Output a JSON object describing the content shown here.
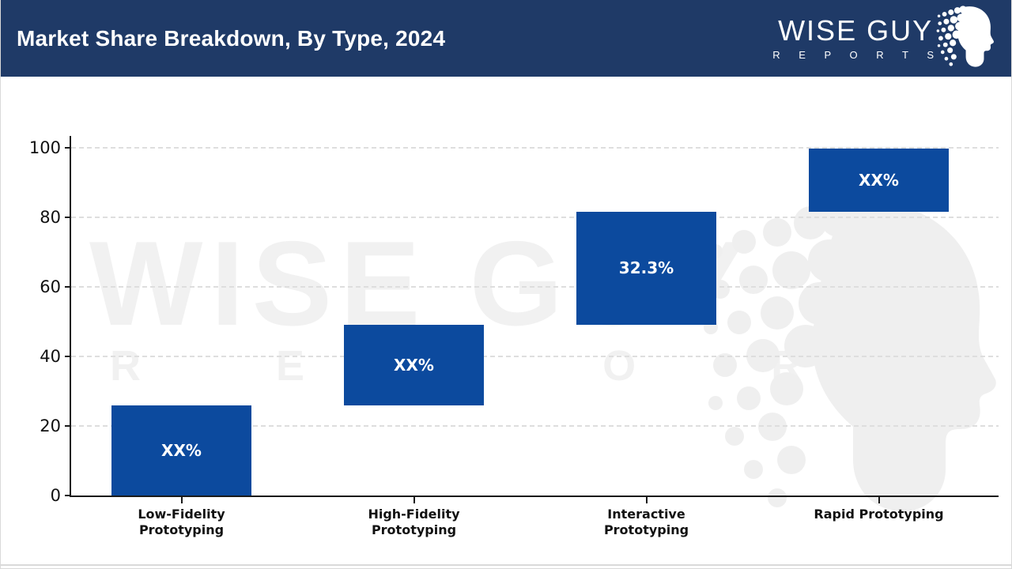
{
  "header": {
    "title": "Market Share Breakdown, By Type, 2024",
    "logo": {
      "line1": "WISE GUY",
      "line2": "R E P O R T S"
    }
  },
  "watermark": {
    "line1": "WISE GUY",
    "line2": "R E P O R T S"
  },
  "chart_data": {
    "type": "bar",
    "subtype": "floating-waterfall",
    "title": "Market Share Breakdown, By Type, 2024",
    "categories": [
      "Low-Fidelity Prototyping",
      "High-Fidelity Prototyping",
      "Interactive Prototyping",
      "Rapid Prototyping"
    ],
    "category_label_lines": [
      [
        "Low-Fidelity",
        "Prototyping"
      ],
      [
        "High-Fidelity",
        "Prototyping"
      ],
      [
        "Interactive",
        "Prototyping"
      ],
      [
        "Rapid Prototyping"
      ]
    ],
    "bars": [
      {
        "category": "Low-Fidelity Prototyping",
        "from": 0,
        "to": 25.8,
        "label": "XX%"
      },
      {
        "category": "High-Fidelity Prototyping",
        "from": 25.8,
        "to": 49.2,
        "label": "XX%"
      },
      {
        "category": "Interactive Prototyping",
        "from": 49.2,
        "to": 81.5,
        "label": "32.3%"
      },
      {
        "category": "Rapid Prototyping",
        "from": 81.5,
        "to": 99.8,
        "label": "XX%"
      }
    ],
    "xlabel": "",
    "ylabel": "",
    "ylim": [
      0,
      100
    ],
    "yticks": [
      0,
      20,
      40,
      60,
      80,
      100
    ],
    "grid": "horizontal-dashed",
    "legend": "none",
    "bar_color": "#0c4a9e",
    "bar_label_color": "#ffffff"
  },
  "colors": {
    "header_bg": "#1f3a67",
    "bar": "#0c4a9e",
    "axis": "#1a1a1a",
    "gridline": "#dedede",
    "watermark": "#f1f1f1",
    "page_bg": "#ffffff",
    "border": "#d9d9d9"
  }
}
